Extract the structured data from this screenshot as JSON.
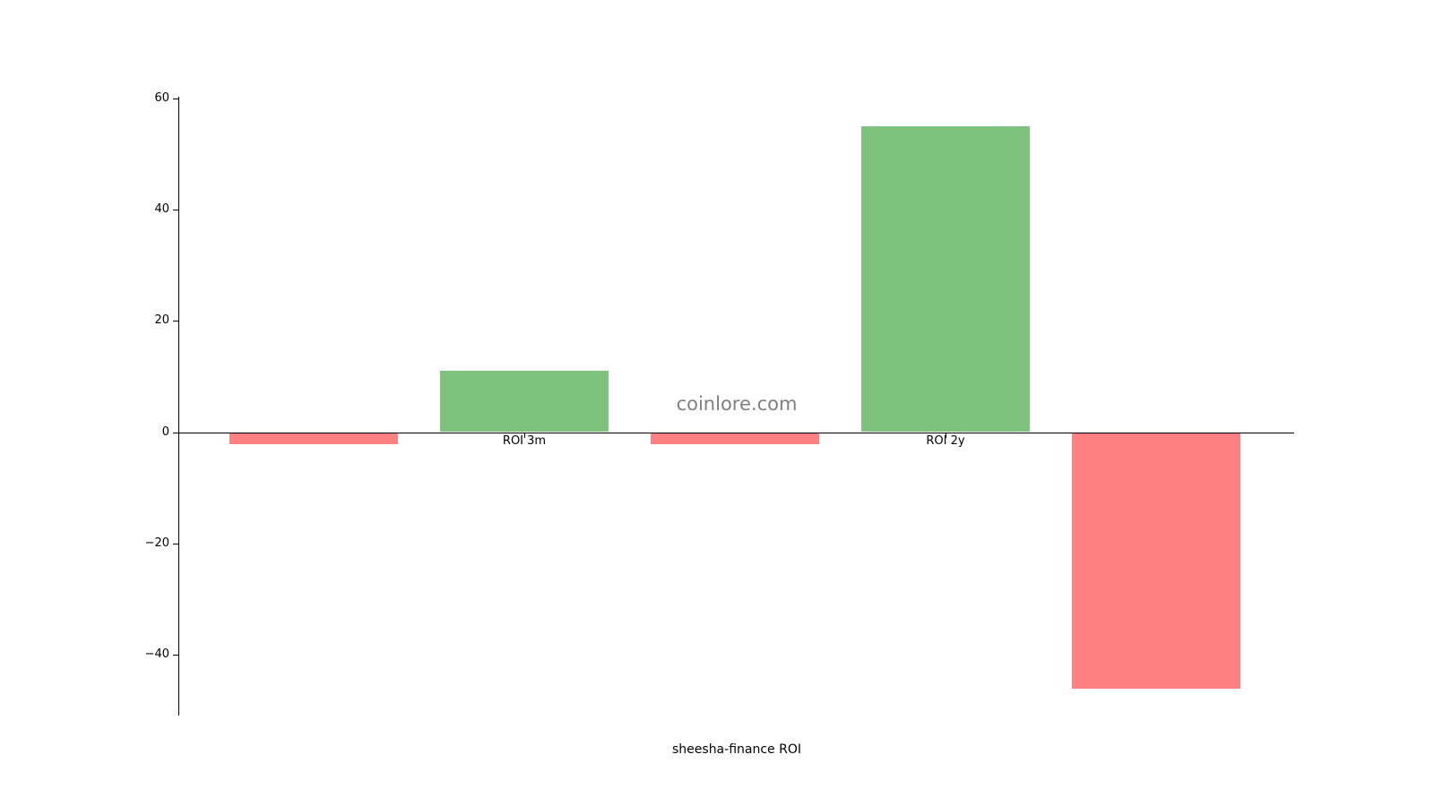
{
  "page": {
    "background_color": "#ffffff"
  },
  "watermark": {
    "text": "coinlore.com",
    "color": "#7f7f7f"
  },
  "title": {
    "text": "sheesha-finance ROI"
  },
  "chart_data": {
    "type": "bar",
    "title": "sheesha-finance ROI",
    "xlabel": "",
    "ylabel": "",
    "categories": [
      "",
      "ROI 3m",
      "",
      "ROI 2y",
      ""
    ],
    "values": [
      -2,
      11,
      -2,
      55,
      -46
    ],
    "bar_colors": [
      "#ff8080",
      "#7dc37d",
      "#ff8080",
      "#7dc37d",
      "#ff8080"
    ],
    "positive_color": "#7dc37d",
    "negative_color": "#ff8080",
    "yticks": [
      {
        "label": "60",
        "value": 60
      },
      {
        "label": "40",
        "value": 40
      },
      {
        "label": "20",
        "value": 20
      },
      {
        "label": "0",
        "value": 0
      },
      {
        "label": "−20",
        "value": -20
      },
      {
        "label": "−40",
        "value": -40
      }
    ],
    "visible_xticks": [
      {
        "label": "ROI 3m",
        "index": 1
      },
      {
        "label": "ROI 2y",
        "index": 3
      }
    ],
    "ylim": [
      -50.9,
      60.2
    ],
    "grid": false,
    "legend": false,
    "zero_line": true
  }
}
